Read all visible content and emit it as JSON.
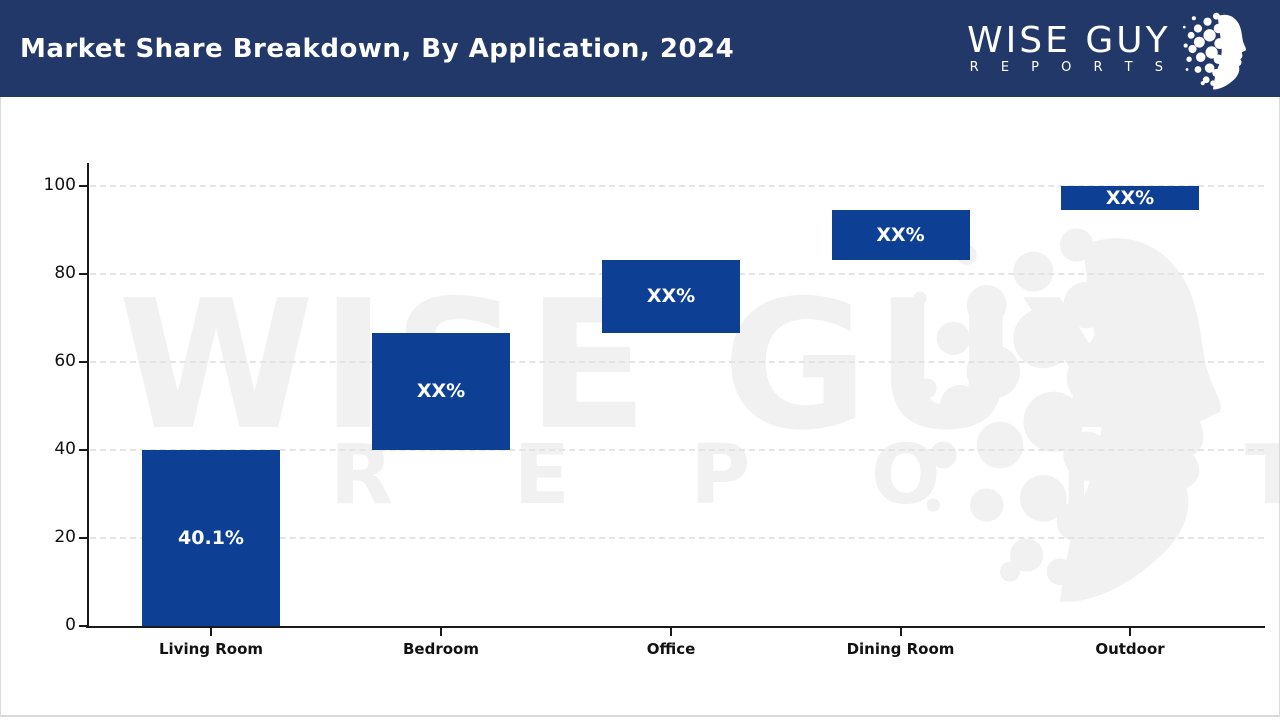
{
  "header": {
    "title": "Market Share Breakdown, By Application, 2024",
    "background_color": "#213869",
    "text_color": "#ffffff",
    "logo": {
      "line1": "WISE GUY",
      "line2": "R E P O R T S"
    }
  },
  "watermark": {
    "line1": "WISE GUY",
    "line2": "R E P O R T S",
    "color": "#f1f1f1"
  },
  "chart_data": {
    "type": "bar",
    "subtype": "waterfall",
    "title": "Market Share Breakdown, By Application, 2024",
    "xlabel": "",
    "ylabel": "",
    "categories": [
      "Living Room",
      "Bedroom",
      "Office",
      "Dining Room",
      "Outdoor"
    ],
    "segments": [
      {
        "category": "Living Room",
        "start": 0,
        "end": 40.1,
        "label": "40.1%"
      },
      {
        "category": "Bedroom",
        "start": 40.1,
        "end": 66.6,
        "label": "XX%"
      },
      {
        "category": "Office",
        "start": 66.6,
        "end": 83.2,
        "label": "XX%"
      },
      {
        "category": "Dining Room",
        "start": 83.2,
        "end": 94.5,
        "label": "XX%"
      },
      {
        "category": "Outdoor",
        "start": 94.5,
        "end": 100,
        "label": "XX%"
      }
    ],
    "yticks": [
      0,
      20,
      40,
      60,
      80,
      100
    ],
    "ylim": [
      0,
      105
    ],
    "grid": true,
    "gridline_values": [
      20,
      40,
      60,
      80,
      100
    ],
    "bar_color": "#0d3f94",
    "bar_label_color": "#ffffff",
    "gridline_color": "#e4e4e4",
    "axis_color": "#1a1a1a",
    "legend": "none"
  }
}
